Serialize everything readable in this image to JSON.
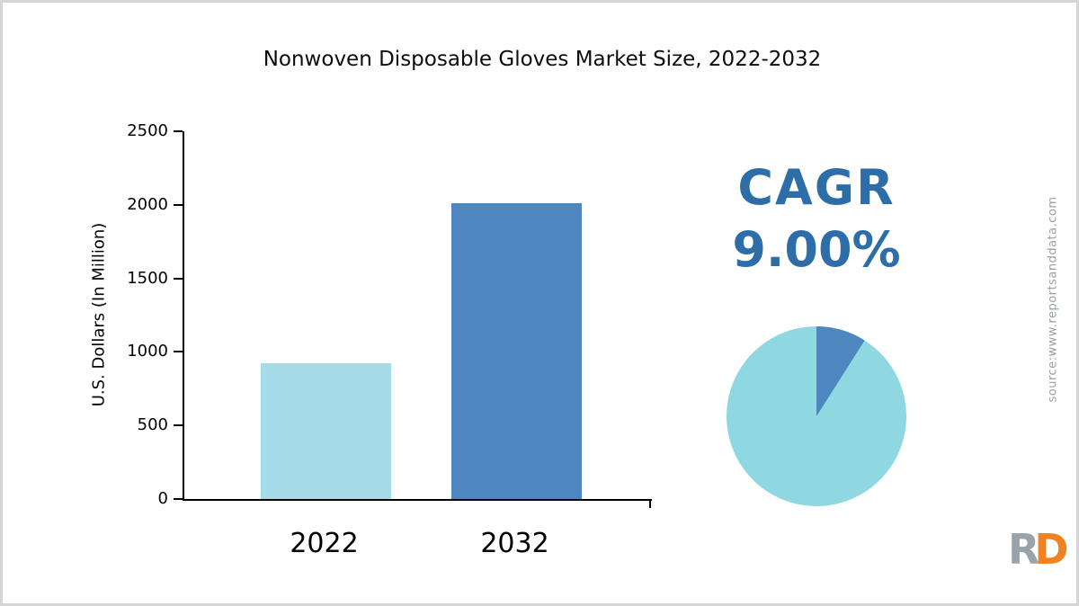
{
  "chart_data": [
    {
      "type": "bar",
      "title": "Nonwoven Disposable Gloves Market Size, 2022-2032",
      "categories": [
        "2022",
        "2032"
      ],
      "values": [
        925,
        2010
      ],
      "colors": [
        "#a6dbe8",
        "#4e86c0"
      ],
      "xlabel": "",
      "ylabel": "U.S. Dollars (In Million)",
      "ylim": [
        0,
        2500
      ],
      "yticks": [
        0,
        500,
        1000,
        1500,
        2000,
        2500
      ],
      "grid": false,
      "legend": "none"
    },
    {
      "type": "pie",
      "labels": [
        "CAGR slice",
        "remainder"
      ],
      "values": [
        9,
        91
      ],
      "colors": [
        "#4e86c0",
        "#8fd8e2"
      ],
      "start_angle_deg": 0,
      "direction": "clockwise"
    }
  ],
  "cagr": {
    "label": "CAGR",
    "value": "9.00%",
    "color": "#2d6da8"
  },
  "source": "source:www.reportsanddata.com",
  "logo": {
    "letter": "R",
    "accent_letter": "D",
    "letter_color": "#9aa2aa",
    "accent_color": "#f08223"
  }
}
